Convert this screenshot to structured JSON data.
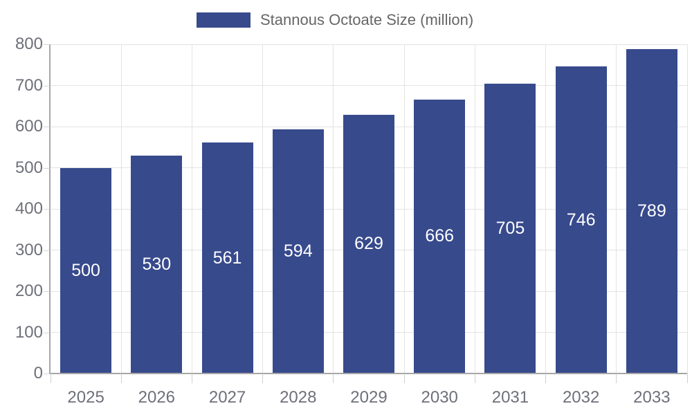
{
  "legend": {
    "label": "Stannous Octoate Size (million)"
  },
  "colors": {
    "bar": "#374A8C",
    "grid": "#e3e3e3",
    "axis_line": "#a6a6a6",
    "axis_text": "#6e7079",
    "legend_text": "#666666",
    "value_label": "#ffffff",
    "background": "#ffffff"
  },
  "chart_data": {
    "type": "bar",
    "title": "",
    "xlabel": "",
    "ylabel": "",
    "categories": [
      "2025",
      "2026",
      "2027",
      "2028",
      "2029",
      "2030",
      "2031",
      "2032",
      "2033"
    ],
    "series": [
      {
        "name": "Stannous Octoate Size (million)",
        "values": [
          500,
          530,
          561,
          594,
          629,
          666,
          705,
          746,
          789
        ]
      }
    ],
    "value_labels_shown": true,
    "ylim": [
      0,
      800
    ],
    "yticks": [
      0,
      100,
      200,
      300,
      400,
      500,
      600,
      700,
      800
    ],
    "grid": true,
    "legend_position": "top-center"
  }
}
